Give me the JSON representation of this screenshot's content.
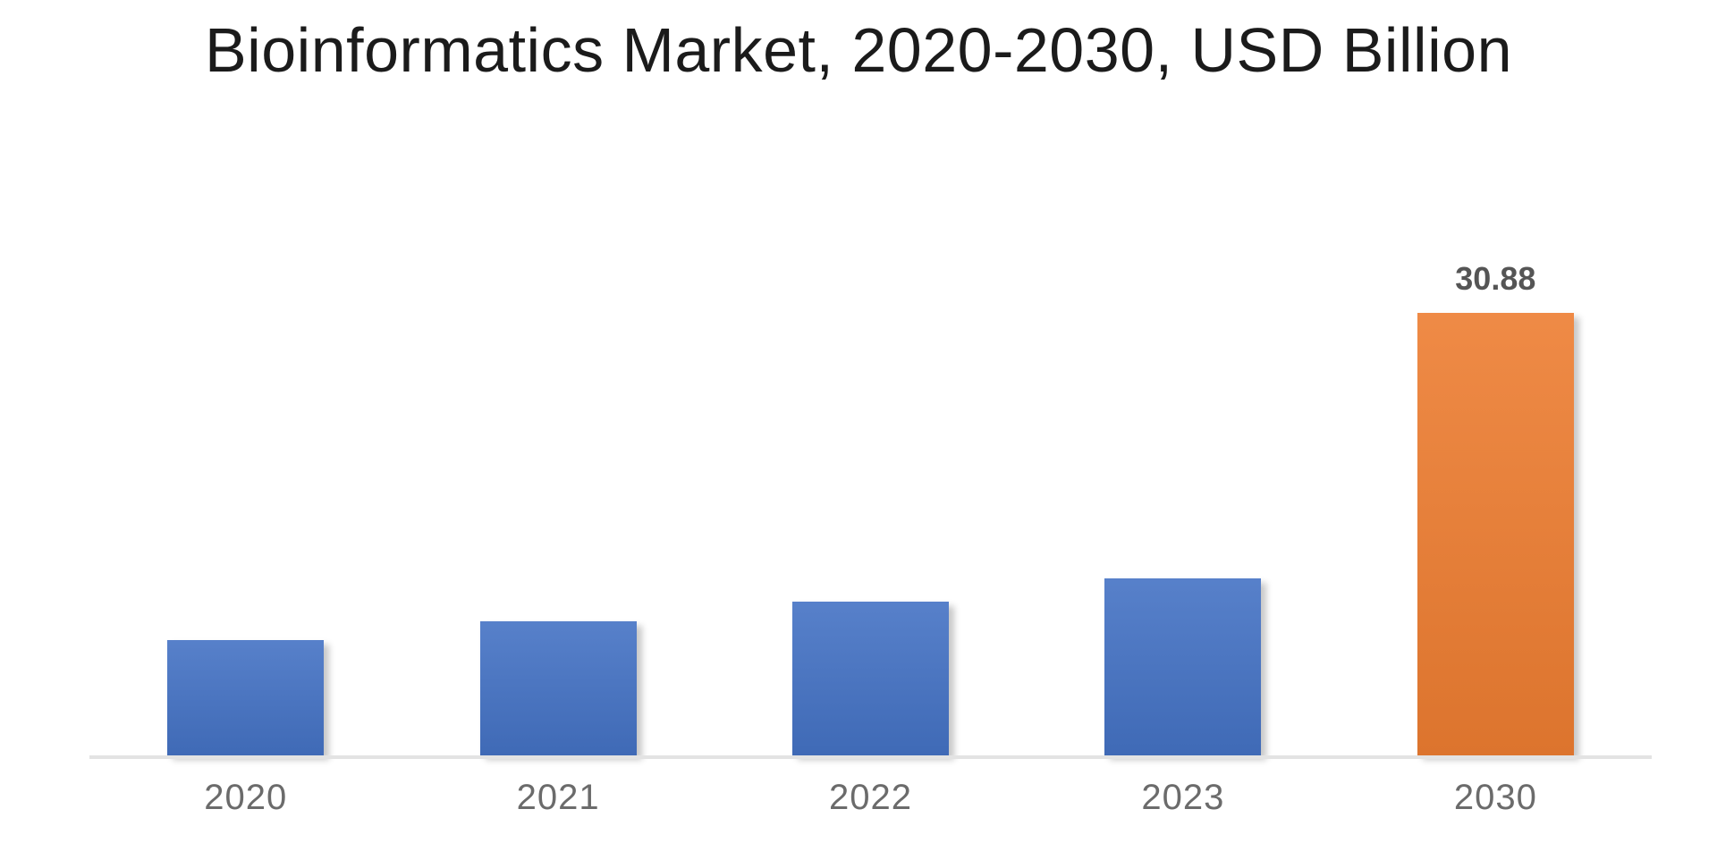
{
  "chart_data": {
    "type": "bar",
    "title": "Bioinformatics Market, 2020-2030, USD Billion",
    "categories": [
      "2020",
      "2021",
      "2022",
      "2023",
      "2030"
    ],
    "values": [
      7.5,
      8.7,
      10.0,
      11.5,
      30.88
    ],
    "data_labels": [
      "",
      "",
      "",
      "",
      "30.88"
    ],
    "xlabel": "",
    "ylabel": "",
    "ylim": [
      0,
      32
    ],
    "grid": false,
    "legend": false,
    "y_axis_visible": false,
    "bar_colors": [
      "#4472C4",
      "#4472C4",
      "#4472C4",
      "#4472C4",
      "#ED7D31"
    ],
    "highlight_category": "2030"
  },
  "colors": {
    "blue_bar": "#4472C4",
    "orange_bar": "#ED7D31",
    "axis_line": "#E3E3E3",
    "tick_label": "#6B6B6B",
    "data_label": "#555555",
    "title_text": "#1B1B1B",
    "background": "#FFFFFF"
  }
}
